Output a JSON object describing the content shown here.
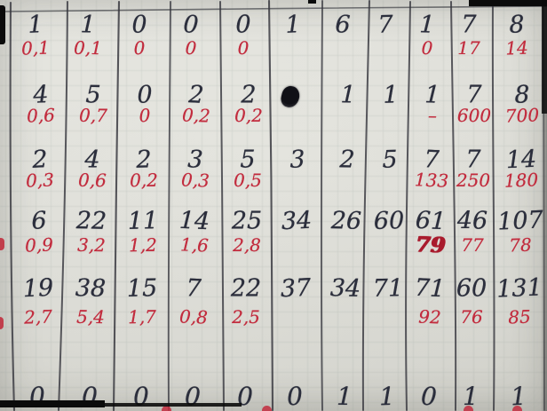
{
  "document": {
    "kind": "handwritten-ledger-photo",
    "colors": {
      "paper": "#e3e3dd",
      "ink_dark": "#2b2e3c",
      "ink_red": "#c22c3e",
      "rule_line": "#34353c"
    },
    "table": {
      "columns": 11,
      "rows": [
        {
          "cells": [
            {
              "top": "1",
              "red": "0,1"
            },
            {
              "top": "1",
              "red": "0,1"
            },
            {
              "top": "0",
              "red": "0"
            },
            {
              "top": "0",
              "red": "0"
            },
            {
              "top": "0",
              "red": "0"
            },
            {
              "top": "1"
            },
            {
              "top": "6"
            },
            {
              "top": "7"
            },
            {
              "top": "1",
              "red": "0"
            },
            {
              "top": "7",
              "red": "17"
            },
            {
              "top": "8",
              "red": "14"
            }
          ]
        },
        {
          "cells": [
            {
              "top": "4",
              "red": "0,6"
            },
            {
              "top": "5",
              "red": "0,7"
            },
            {
              "top": "0",
              "red": "0"
            },
            {
              "top": "2",
              "red": "0,2"
            },
            {
              "top": "2",
              "red": "0,2"
            },
            {
              "top": "",
              "scribbled": true
            },
            {
              "top": "1"
            },
            {
              "top": "1"
            },
            {
              "top": "1",
              "red": "–"
            },
            {
              "top": "7",
              "red": "600"
            },
            {
              "top": "8",
              "red": "700"
            }
          ]
        },
        {
          "cells": [
            {
              "top": "2",
              "red": "0,3"
            },
            {
              "top": "4",
              "red": "0,6"
            },
            {
              "top": "2",
              "red": "0,2"
            },
            {
              "top": "3",
              "red": "0,3"
            },
            {
              "top": "5",
              "red": "0,5"
            },
            {
              "top": "3"
            },
            {
              "top": "2"
            },
            {
              "top": "5"
            },
            {
              "top": "7",
              "red": "133"
            },
            {
              "top": "7",
              "red": "250"
            },
            {
              "top": "14",
              "red": "180"
            }
          ]
        },
        {
          "cells": [
            {
              "top": "6",
              "red": "0,9"
            },
            {
              "top": "22",
              "red": "3,2"
            },
            {
              "top": "11",
              "red": "1,2"
            },
            {
              "top": "14",
              "red": "1,6"
            },
            {
              "top": "25",
              "red": "2,8"
            },
            {
              "top": "34"
            },
            {
              "top": "26"
            },
            {
              "top": "60"
            },
            {
              "top": "61",
              "red": "79",
              "corrected": true
            },
            {
              "top": "46",
              "red": "77"
            },
            {
              "top": "107",
              "red": "78"
            }
          ]
        },
        {
          "cells": [
            {
              "top": "19",
              "red": "2,7"
            },
            {
              "top": "38",
              "red": "5,4"
            },
            {
              "top": "15",
              "red": "1,7"
            },
            {
              "top": "7",
              "red": "0,8"
            },
            {
              "top": "22",
              "red": "2,5"
            },
            {
              "top": "37"
            },
            {
              "top": "34"
            },
            {
              "top": "71"
            },
            {
              "top": "71",
              "red": "92"
            },
            {
              "top": "60",
              "red": "76"
            },
            {
              "top": "131",
              "red": "85"
            }
          ]
        },
        {
          "cells": [
            {
              "top": "0"
            },
            {
              "top": "0"
            },
            {
              "top": "0"
            },
            {
              "top": "0",
              "red_partial": true
            },
            {
              "top": "0",
              "red_partial": true
            },
            {
              "top": "0"
            },
            {
              "top": "1"
            },
            {
              "top": "1"
            },
            {
              "top": "0"
            },
            {
              "top": "1",
              "red_partial": true
            },
            {
              "top": "1",
              "red_partial": true
            }
          ]
        }
      ]
    }
  }
}
